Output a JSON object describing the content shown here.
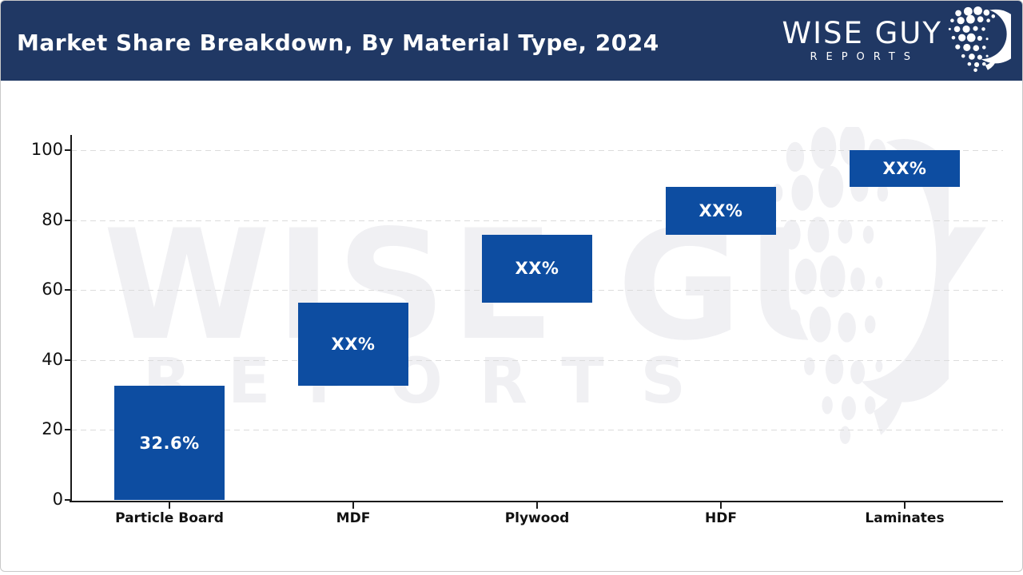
{
  "header": {
    "title": "Market Share Breakdown, By Material Type, 2024",
    "logo": {
      "line1": "WISE GUY",
      "line2": "REPORTS"
    }
  },
  "watermark": {
    "line1": "WISE GUY",
    "line2": "REPORTS"
  },
  "colors": {
    "header_bg": "#203864",
    "bar_fill": "#0d4da1",
    "bar_label": "#ffffff",
    "grid": "#dcdcdc",
    "watermark": "#f0f0f3"
  },
  "chart_data": {
    "type": "bar",
    "subtype": "waterfall",
    "title": "Market Share Breakdown, By Material Type, 2024",
    "categories": [
      "Particle Board",
      "MDF",
      "Plywood",
      "HDF",
      "Laminates"
    ],
    "bars": [
      {
        "category": "Particle Board",
        "start": 0,
        "end": 32.6,
        "label": "32.6%"
      },
      {
        "category": "MDF",
        "start": 32.6,
        "end": 56.4,
        "label": "XX%"
      },
      {
        "category": "Plywood",
        "start": 56.4,
        "end": 75.8,
        "label": "XX%"
      },
      {
        "category": "HDF",
        "start": 75.8,
        "end": 89.4,
        "label": "XX%"
      },
      {
        "category": "Laminates",
        "start": 89.4,
        "end": 100,
        "label": "XX%"
      }
    ],
    "yticks": [
      0,
      20,
      40,
      60,
      80,
      100
    ],
    "ylim": [
      0,
      104
    ],
    "xlabel": "",
    "ylabel": "",
    "grid": "horizontal-dashed",
    "legend": "none"
  }
}
